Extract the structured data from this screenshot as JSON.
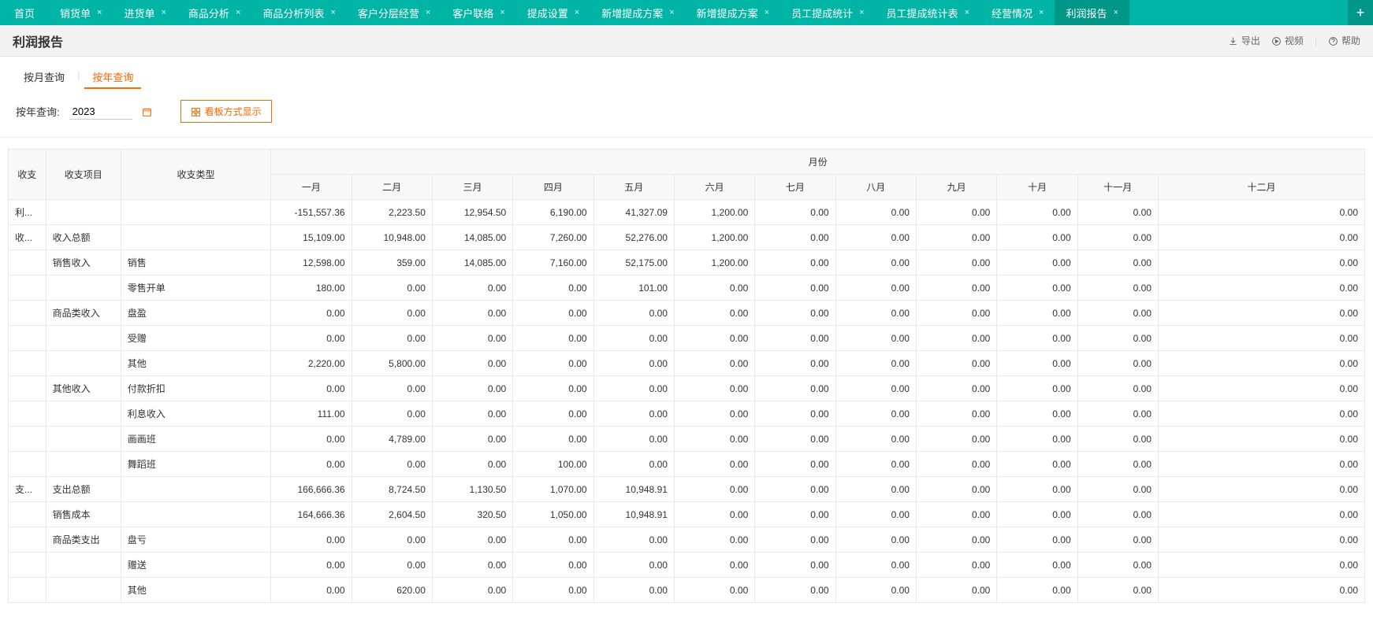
{
  "nav": {
    "home": "首页",
    "tabs": [
      {
        "label": "销货单",
        "active": false
      },
      {
        "label": "进货单",
        "active": false
      },
      {
        "label": "商品分析",
        "active": false
      },
      {
        "label": "商品分析列表",
        "active": false
      },
      {
        "label": "客户分层经营",
        "active": false
      },
      {
        "label": "客户联络",
        "active": false
      },
      {
        "label": "提成设置",
        "active": false
      },
      {
        "label": "新增提成方案",
        "active": false
      },
      {
        "label": "新增提成方案",
        "active": false
      },
      {
        "label": "员工提成统计",
        "active": false
      },
      {
        "label": "员工提成统计表",
        "active": false
      },
      {
        "label": "经营情况",
        "active": false
      },
      {
        "label": "利润报告",
        "active": true
      }
    ]
  },
  "header": {
    "title": "利润报告",
    "actions": {
      "export": "导出",
      "video": "视频",
      "help": "帮助"
    }
  },
  "subtabs": {
    "monthly": "按月查询",
    "yearly": "按年查询"
  },
  "filter": {
    "label": "按年查询:",
    "year": "2023",
    "view_btn": "看板方式显示"
  },
  "table": {
    "col_category": "收支",
    "col_item": "收支项目",
    "col_type": "收支类型",
    "col_month_header": "月份",
    "months": [
      "一月",
      "二月",
      "三月",
      "四月",
      "五月",
      "六月",
      "七月",
      "八月",
      "九月",
      "十月",
      "十一月",
      "十二月"
    ],
    "rows": [
      {
        "cat": "利...",
        "item": "",
        "type": "",
        "vals": [
          "-151,557.36",
          "2,223.50",
          "12,954.50",
          "6,190.00",
          "41,327.09",
          "1,200.00",
          "0.00",
          "0.00",
          "0.00",
          "0.00",
          "0.00",
          "0.00"
        ]
      },
      {
        "cat": "收...",
        "item": "收入总额",
        "type": "",
        "vals": [
          "15,109.00",
          "10,948.00",
          "14,085.00",
          "7,260.00",
          "52,276.00",
          "1,200.00",
          "0.00",
          "0.00",
          "0.00",
          "0.00",
          "0.00",
          "0.00"
        ]
      },
      {
        "cat": "",
        "item": "销售收入",
        "type": "销售",
        "vals": [
          "12,598.00",
          "359.00",
          "14,085.00",
          "7,160.00",
          "52,175.00",
          "1,200.00",
          "0.00",
          "0.00",
          "0.00",
          "0.00",
          "0.00",
          "0.00"
        ]
      },
      {
        "cat": "",
        "item": "",
        "type": "零售开单",
        "vals": [
          "180.00",
          "0.00",
          "0.00",
          "0.00",
          "101.00",
          "0.00",
          "0.00",
          "0.00",
          "0.00",
          "0.00",
          "0.00",
          "0.00"
        ]
      },
      {
        "cat": "",
        "item": "商品类收入",
        "type": "盘盈",
        "vals": [
          "0.00",
          "0.00",
          "0.00",
          "0.00",
          "0.00",
          "0.00",
          "0.00",
          "0.00",
          "0.00",
          "0.00",
          "0.00",
          "0.00"
        ]
      },
      {
        "cat": "",
        "item": "",
        "type": "受赠",
        "vals": [
          "0.00",
          "0.00",
          "0.00",
          "0.00",
          "0.00",
          "0.00",
          "0.00",
          "0.00",
          "0.00",
          "0.00",
          "0.00",
          "0.00"
        ]
      },
      {
        "cat": "",
        "item": "",
        "type": "其他",
        "vals": [
          "2,220.00",
          "5,800.00",
          "0.00",
          "0.00",
          "0.00",
          "0.00",
          "0.00",
          "0.00",
          "0.00",
          "0.00",
          "0.00",
          "0.00"
        ]
      },
      {
        "cat": "",
        "item": "其他收入",
        "type": "付款折扣",
        "vals": [
          "0.00",
          "0.00",
          "0.00",
          "0.00",
          "0.00",
          "0.00",
          "0.00",
          "0.00",
          "0.00",
          "0.00",
          "0.00",
          "0.00"
        ]
      },
      {
        "cat": "",
        "item": "",
        "type": "利息收入",
        "vals": [
          "111.00",
          "0.00",
          "0.00",
          "0.00",
          "0.00",
          "0.00",
          "0.00",
          "0.00",
          "0.00",
          "0.00",
          "0.00",
          "0.00"
        ]
      },
      {
        "cat": "",
        "item": "",
        "type": "画画班",
        "vals": [
          "0.00",
          "4,789.00",
          "0.00",
          "0.00",
          "0.00",
          "0.00",
          "0.00",
          "0.00",
          "0.00",
          "0.00",
          "0.00",
          "0.00"
        ]
      },
      {
        "cat": "",
        "item": "",
        "type": "舞蹈班",
        "vals": [
          "0.00",
          "0.00",
          "0.00",
          "100.00",
          "0.00",
          "0.00",
          "0.00",
          "0.00",
          "0.00",
          "0.00",
          "0.00",
          "0.00"
        ]
      },
      {
        "cat": "支...",
        "item": "支出总额",
        "type": "",
        "vals": [
          "166,666.36",
          "8,724.50",
          "1,130.50",
          "1,070.00",
          "10,948.91",
          "0.00",
          "0.00",
          "0.00",
          "0.00",
          "0.00",
          "0.00",
          "0.00"
        ]
      },
      {
        "cat": "",
        "item": "销售成本",
        "type": "",
        "vals": [
          "164,666.36",
          "2,604.50",
          "320.50",
          "1,050.00",
          "10,948.91",
          "0.00",
          "0.00",
          "0.00",
          "0.00",
          "0.00",
          "0.00",
          "0.00"
        ]
      },
      {
        "cat": "",
        "item": "商品类支出",
        "type": "盘亏",
        "vals": [
          "0.00",
          "0.00",
          "0.00",
          "0.00",
          "0.00",
          "0.00",
          "0.00",
          "0.00",
          "0.00",
          "0.00",
          "0.00",
          "0.00"
        ]
      },
      {
        "cat": "",
        "item": "",
        "type": "赠送",
        "vals": [
          "0.00",
          "0.00",
          "0.00",
          "0.00",
          "0.00",
          "0.00",
          "0.00",
          "0.00",
          "0.00",
          "0.00",
          "0.00",
          "0.00"
        ]
      },
      {
        "cat": "",
        "item": "",
        "type": "其他",
        "vals": [
          "0.00",
          "620.00",
          "0.00",
          "0.00",
          "0.00",
          "0.00",
          "0.00",
          "0.00",
          "0.00",
          "0.00",
          "0.00",
          "0.00"
        ]
      }
    ]
  }
}
